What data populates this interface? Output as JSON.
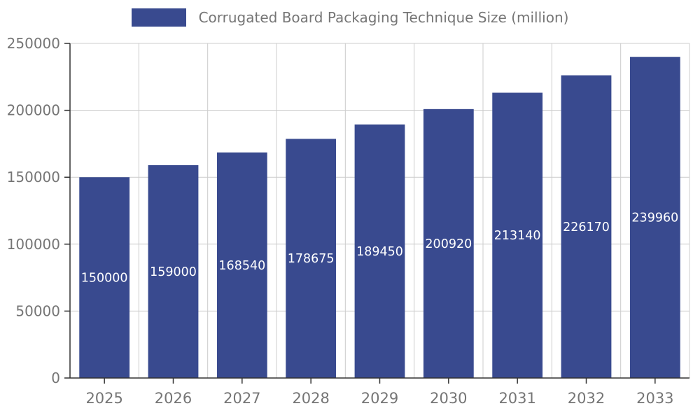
{
  "chart_data": {
    "type": "bar",
    "title": "Corrugated Board Packaging Technique Size (million)",
    "categories": [
      "2025",
      "2026",
      "2027",
      "2028",
      "2029",
      "2030",
      "2031",
      "2032",
      "2033"
    ],
    "values": [
      150000,
      159000,
      168540,
      178675,
      189450,
      200920,
      213140,
      226170,
      239960
    ],
    "value_labels": [
      "150000",
      "159000",
      "168540",
      "178675",
      "189450",
      "200920",
      "213140",
      "226170",
      "239960"
    ],
    "xlabel": "",
    "ylabel": "",
    "ylim": [
      0,
      250000
    ],
    "yticks": [
      0,
      50000,
      100000,
      150000,
      200000,
      250000
    ],
    "ytick_labels": [
      "0",
      "50000",
      "100000",
      "150000",
      "200000",
      "250000"
    ],
    "grid": true,
    "legend_position": "top",
    "bar_color": "#394a8f",
    "bar_label_color": "#ffffff",
    "axis_text_color": "#757575",
    "grid_color": "#cccccc",
    "axis_line_color": "#333333",
    "background_color": "#ffffff"
  }
}
